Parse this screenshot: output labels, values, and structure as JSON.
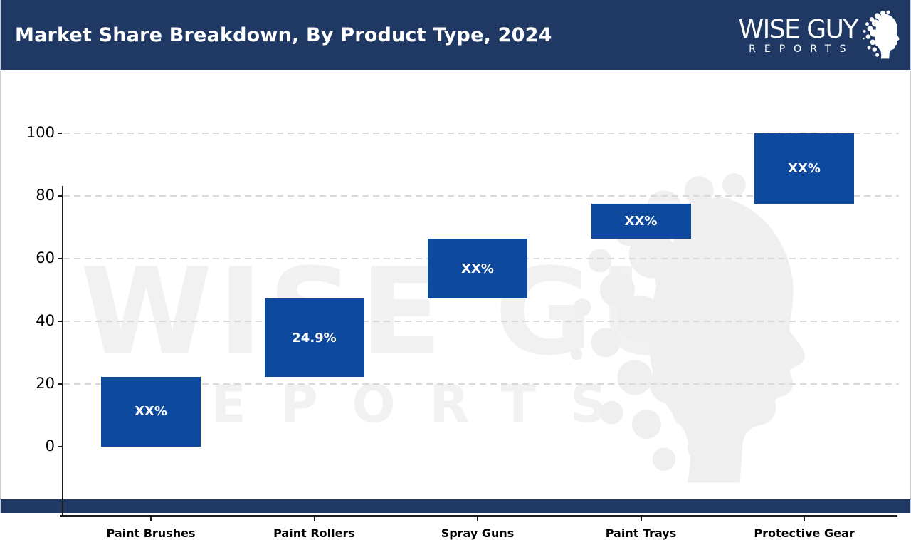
{
  "header": {
    "title": "Market Share Breakdown, By Product Type, 2024",
    "logo": {
      "wordmark": "WISE GUY",
      "subtitle": "REPORTS"
    }
  },
  "watermark": {
    "wordmark": "WISE GUY",
    "subtitle": "REPORTS"
  },
  "colors": {
    "header_bg": "#1f3864",
    "footer_bg": "#1f3864",
    "bar": "#0d4a9e",
    "grid": "#d9d9d9",
    "axis": "#1a1a1a",
    "value_label": "#ffffff",
    "watermark": "#f1f1f1"
  },
  "chart_data": {
    "type": "bar",
    "subtype": "floating-waterfall",
    "title": "Market Share Breakdown, By Product Type, 2024",
    "categories": [
      "Paint Brushes",
      "Paint Rollers",
      "Spray Guns",
      "Paint Trays",
      "Protective Gear"
    ],
    "segments": [
      {
        "category": "Paint Brushes",
        "start": 0,
        "end": 22.3,
        "label": "XX%"
      },
      {
        "category": "Paint Rollers",
        "start": 22.3,
        "end": 47.2,
        "label": "24.9%"
      },
      {
        "category": "Spray Guns",
        "start": 47.2,
        "end": 66.4,
        "label": "XX%"
      },
      {
        "category": "Paint Trays",
        "start": 66.4,
        "end": 77.5,
        "label": "XX%"
      },
      {
        "category": "Protective Gear",
        "start": 77.5,
        "end": 100,
        "label": "XX%"
      }
    ],
    "yticks": [
      0,
      20,
      40,
      60,
      80,
      100
    ],
    "ylim": [
      0,
      105
    ],
    "xlabel": "",
    "ylabel": "",
    "grid": "horizontal-dashed",
    "legend": "none"
  }
}
